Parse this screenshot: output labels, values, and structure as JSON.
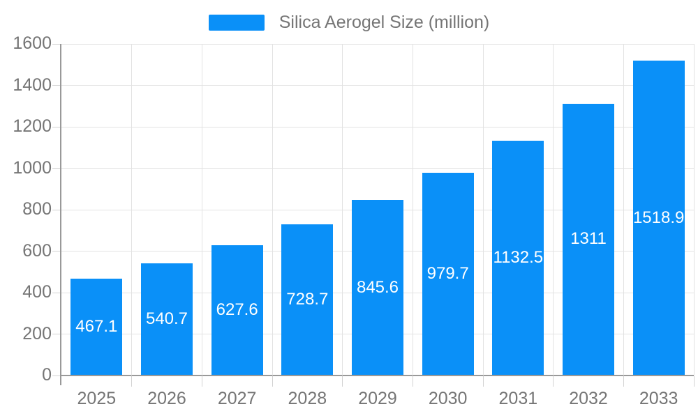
{
  "legend": {
    "label": "Silica Aerogel Size (million)"
  },
  "colors": {
    "bar": "#0a90f8",
    "axis": "#999999",
    "grid": "#e2e2e2",
    "tick": "#d2d2d2",
    "text": "#757575",
    "bar_label": "#ffffff",
    "background": "#ffffff"
  },
  "chart_data": {
    "type": "bar",
    "title": "Silica Aerogel Size (million)",
    "categories": [
      "2025",
      "2026",
      "2027",
      "2028",
      "2029",
      "2030",
      "2031",
      "2032",
      "2033"
    ],
    "values": [
      467.1,
      540.7,
      627.6,
      728.7,
      845.6,
      979.7,
      1132.5,
      1311,
      1518.9
    ],
    "value_labels": [
      "467.1",
      "540.7",
      "627.6",
      "728.7",
      "845.6",
      "979.7",
      "1132.5",
      "1311",
      "1518.9"
    ],
    "xlabel": "",
    "ylabel": "",
    "ylim": [
      0,
      1600
    ],
    "yticks": [
      0,
      200,
      400,
      600,
      800,
      1000,
      1200,
      1400,
      1600
    ],
    "grid": true,
    "legend_position": "top-center",
    "bar_label_position": "center"
  }
}
